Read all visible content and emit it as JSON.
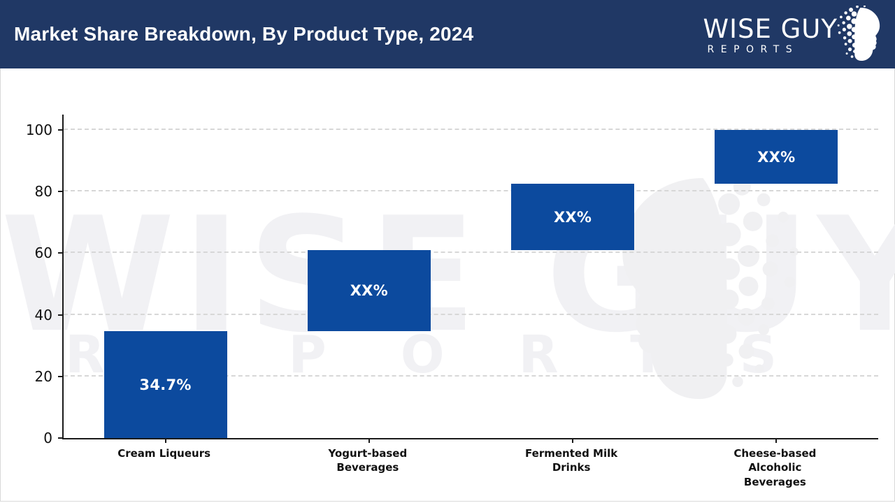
{
  "header": {
    "title": "Market Share Breakdown, By Product Type, 2024",
    "bg_color": "#203865",
    "logo": {
      "line1": "WISE GUY",
      "line2": "REPORTS"
    }
  },
  "watermark": {
    "line1": "WISE GUY",
    "line2": "REPORTS"
  },
  "chart_data": {
    "type": "bar",
    "variant": "floating-waterfall",
    "title": "Market Share Breakdown, By Product Type, 2024",
    "categories": [
      "Cream Liqueurs",
      "Yogurt-based Beverages",
      "Fermented Milk Drinks",
      "Cheese-based Alcoholic Beverages"
    ],
    "category_label_lines": [
      [
        "Cream Liqueurs"
      ],
      [
        "Yogurt-based",
        "Beverages"
      ],
      [
        "Fermented Milk",
        "Drinks"
      ],
      [
        "Cheese-based",
        "Alcoholic",
        "Beverages"
      ]
    ],
    "segments": [
      {
        "category": "Cream Liqueurs",
        "start": 0,
        "end": 34.7,
        "label": "34.7%"
      },
      {
        "category": "Yogurt-based Beverages",
        "start": 34.7,
        "end": 61,
        "label": "XX%"
      },
      {
        "category": "Fermented Milk Drinks",
        "start": 61,
        "end": 82.5,
        "label": "XX%"
      },
      {
        "category": "Cheese-based Alcoholic Beverages",
        "start": 82.5,
        "end": 100,
        "label": "XX%"
      }
    ],
    "yticks": [
      0,
      20,
      40,
      60,
      80,
      100
    ],
    "ylim": [
      0,
      105
    ],
    "xlabel": "",
    "ylabel": "",
    "grid": "horizontal-dashed",
    "legend": "none",
    "bar_color": "#0c4a9e",
    "bar_label_color": "#ffffff",
    "gridline_color": "#d7d7d7",
    "axis_color": "#1a1a1a"
  },
  "colors": {
    "header_navy": "#203865",
    "bar_blue": "#0c4a9e",
    "watermark_gray": "#f0f0f2",
    "border_gray": "#d9d9d9"
  }
}
